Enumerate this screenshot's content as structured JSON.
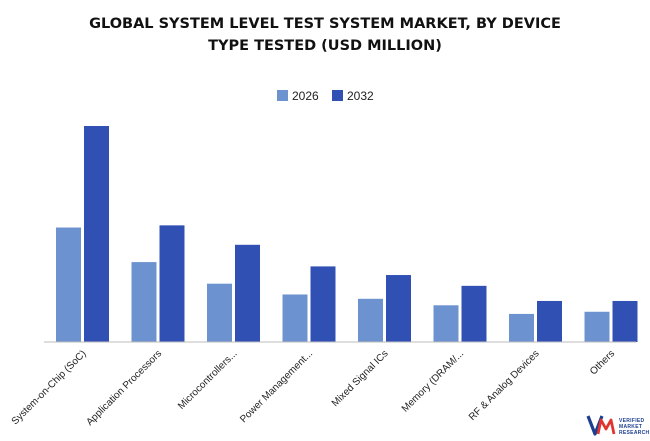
{
  "chart_data": {
    "type": "bar",
    "title_lines": [
      "GLOBAL SYSTEM LEVEL TEST SYSTEM MARKET, BY DEVICE",
      "TYPE TESTED (USD MILLION)"
    ],
    "categories": [
      "System-on-Chip (SoC)",
      "Application Processors",
      "Microcontrollers...",
      "Power Management...",
      "Mixed Signal ICs",
      "Memory (DRAM/...",
      "RF & Analog Devices",
      "Others"
    ],
    "series": [
      {
        "name": "2026",
        "color": "#6c93cf",
        "values": [
          53,
          37,
          27,
          22,
          20,
          17,
          13,
          14
        ]
      },
      {
        "name": "2032",
        "color": "#3050b4",
        "values": [
          100,
          54,
          45,
          35,
          31,
          26,
          19,
          19
        ]
      }
    ],
    "ylim": [
      0,
      105
    ],
    "xlabel": "",
    "ylabel": "",
    "legend_position": "top-center",
    "grid": false
  },
  "logo": {
    "mark": "VM",
    "lines": [
      "VERIFIED",
      "MARKET",
      "RESEARCH"
    ],
    "color": "#1d3f8f"
  }
}
